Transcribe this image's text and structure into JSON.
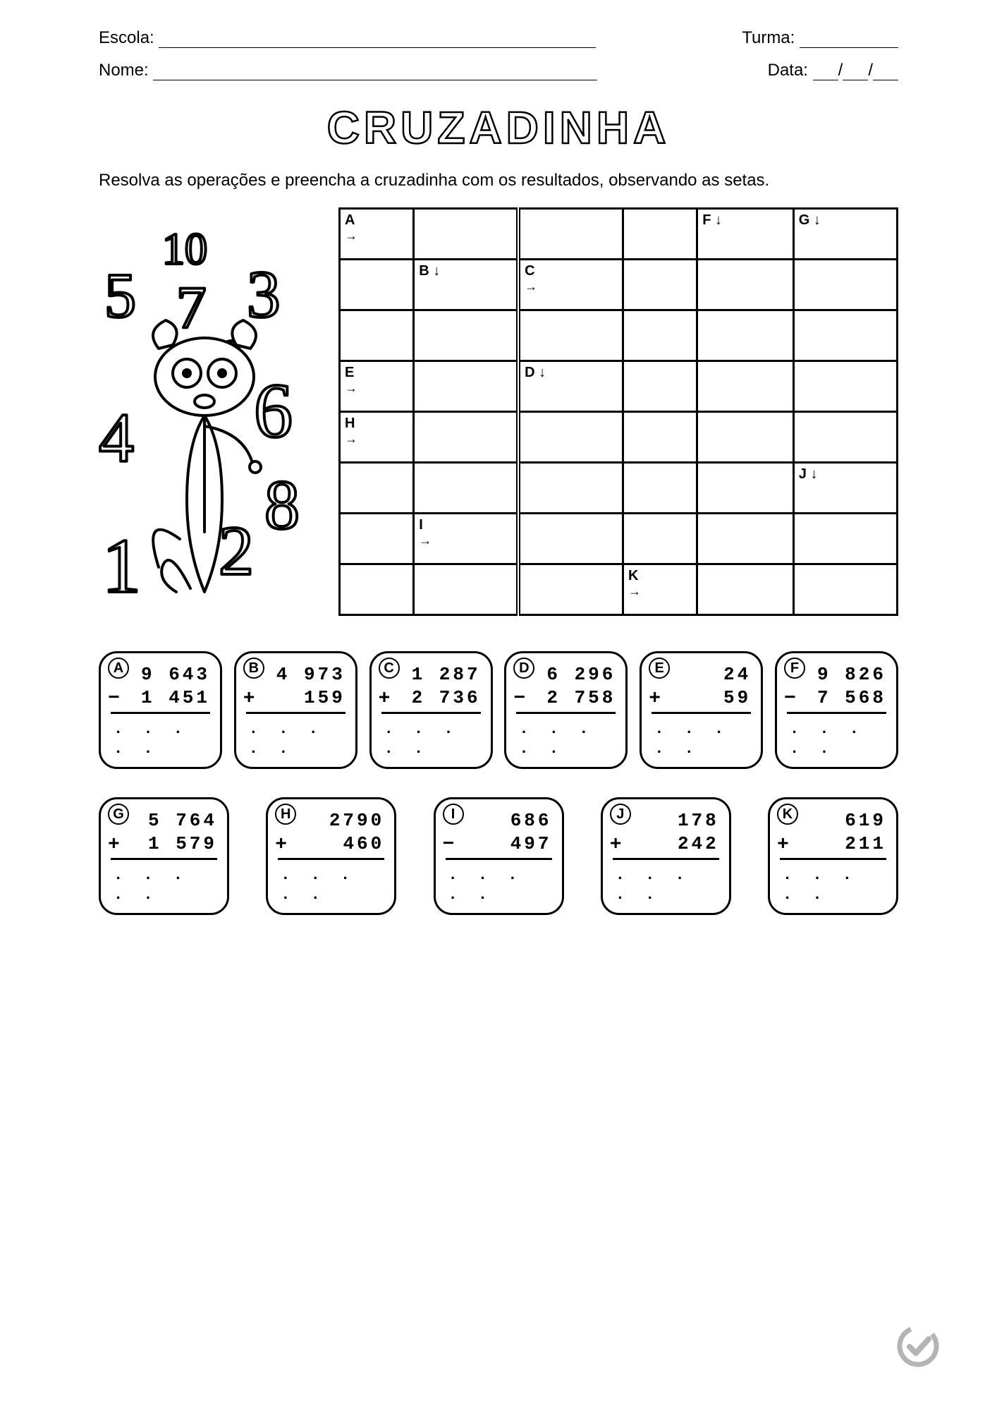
{
  "header": {
    "escola_label": "Escola:",
    "turma_label": "Turma:",
    "nome_label": "Nome:",
    "data_label": "Data:",
    "date_sep": "/"
  },
  "title": "CRUZADINHA",
  "instructions": "Resolva as operações e preencha a cruzadinha com os resultados, observando as setas.",
  "grid": {
    "rows": 8,
    "cols": 6,
    "cells": {
      "r0c0": "A\n→",
      "r0c4": "F ↓",
      "r0c5": "G ↓",
      "r1c1": "B ↓",
      "r1c2": "C\n→",
      "r3c0": "E\n→",
      "r3c2": "D ↓",
      "r4c0": "H\n→",
      "r5c5": "J ↓",
      "r6c1": "I\n→",
      "r7c3": "K\n→"
    },
    "double_left_cols": [
      2
    ]
  },
  "problems_row1": [
    {
      "id": "A",
      "n1": "9 643",
      "op": "−",
      "n2": "1 451"
    },
    {
      "id": "B",
      "n1": "4 973",
      "op": "+",
      "n2": "159"
    },
    {
      "id": "C",
      "n1": "1 287",
      "op": "+",
      "n2": "2 736"
    },
    {
      "id": "D",
      "n1": "6 296",
      "op": "−",
      "n2": "2 758"
    },
    {
      "id": "E",
      "n1": "24",
      "op": "+",
      "n2": "59"
    },
    {
      "id": "F",
      "n1": "9 826",
      "op": "−",
      "n2": "7 568"
    }
  ],
  "problems_row2": [
    {
      "id": "G",
      "n1": "5 764",
      "op": "+",
      "n2": "1 579"
    },
    {
      "id": "H",
      "n1": "2790",
      "op": "+",
      "n2": "460"
    },
    {
      "id": "I",
      "n1": "686",
      "op": "−",
      "n2": "497"
    },
    {
      "id": "J",
      "n1": "178",
      "op": "+",
      "n2": "242"
    },
    {
      "id": "K",
      "n1": "619",
      "op": "+",
      "n2": "211"
    }
  ],
  "dots": ". . . . .",
  "colors": {
    "ink": "#000000",
    "paper": "#ffffff"
  }
}
